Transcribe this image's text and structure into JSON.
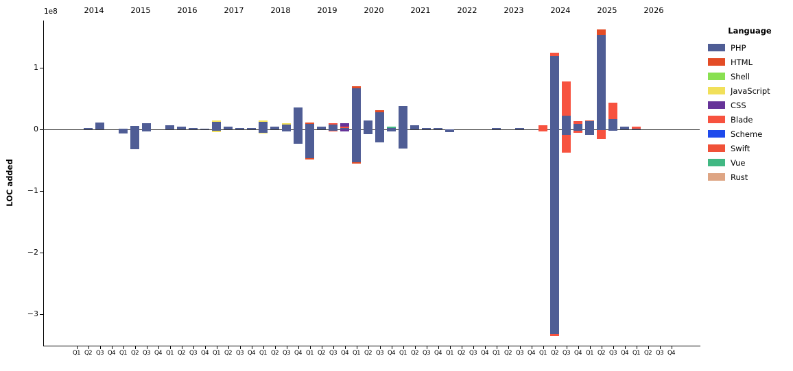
{
  "chart_data": {
    "type": "bar",
    "stacked": true,
    "title": "",
    "ylabel": "LOC added",
    "y_offset_label": "1e8",
    "value_unit": "1e8 lines of code",
    "ylim": [
      -3.51,
      1.77
    ],
    "grid": false,
    "zero_line": true,
    "y_ticks": [
      {
        "value": 1,
        "label": "1"
      },
      {
        "value": 0,
        "label": "0"
      },
      {
        "value": -1,
        "label": "−1"
      },
      {
        "value": -2,
        "label": "−2"
      },
      {
        "value": -3,
        "label": "−3"
      }
    ],
    "years": [
      "2014",
      "2015",
      "2016",
      "2017",
      "2018",
      "2019",
      "2020",
      "2021",
      "2022",
      "2023",
      "2024",
      "2025",
      "2026"
    ],
    "quarter_labels": [
      "Q1",
      "Q2",
      "Q3",
      "Q4"
    ],
    "legend": {
      "title": "Language",
      "position": "right-outside",
      "entries": [
        {
          "label": "PHP",
          "color": "#4f5d95"
        },
        {
          "label": "HTML",
          "color": "#e34c26"
        },
        {
          "label": "Shell",
          "color": "#89e051"
        },
        {
          "label": "JavaScript",
          "color": "#f1e05a"
        },
        {
          "label": "CSS",
          "color": "#663399"
        },
        {
          "label": "Blade",
          "color": "#f7523f"
        },
        {
          "label": "Scheme",
          "color": "#1e4aec"
        },
        {
          "label": "Swift",
          "color": "#f05138"
        },
        {
          "label": "Vue",
          "color": "#41b883"
        },
        {
          "label": "Rust",
          "color": "#dea584"
        }
      ]
    },
    "bars": [
      {
        "year": "2014",
        "quarter": "Q2",
        "pos": [
          [
            "PHP",
            0.02
          ]
        ],
        "neg": []
      },
      {
        "year": "2014",
        "quarter": "Q3",
        "pos": [
          [
            "PHP",
            0.11
          ]
        ],
        "neg": []
      },
      {
        "year": "2015",
        "quarter": "Q1",
        "pos": [
          [
            "PHP",
            0.01
          ]
        ],
        "neg": [
          [
            "PHP",
            0.07
          ]
        ]
      },
      {
        "year": "2015",
        "quarter": "Q2",
        "pos": [
          [
            "PHP",
            0.06
          ]
        ],
        "neg": [
          [
            "PHP",
            0.32
          ]
        ]
      },
      {
        "year": "2015",
        "quarter": "Q3",
        "pos": [
          [
            "PHP",
            0.1
          ]
        ],
        "neg": [
          [
            "PHP",
            0.03
          ]
        ]
      },
      {
        "year": "2016",
        "quarter": "Q1",
        "pos": [
          [
            "PHP",
            0.07
          ]
        ],
        "neg": []
      },
      {
        "year": "2016",
        "quarter": "Q2",
        "pos": [
          [
            "PHP",
            0.04
          ]
        ],
        "neg": []
      },
      {
        "year": "2016",
        "quarter": "Q3",
        "pos": [
          [
            "PHP",
            0.02
          ]
        ],
        "neg": []
      },
      {
        "year": "2016",
        "quarter": "Q4",
        "pos": [
          [
            "PHP",
            0.01
          ]
        ],
        "neg": []
      },
      {
        "year": "2017",
        "quarter": "Q1",
        "pos": [
          [
            "PHP",
            0.12
          ],
          [
            "JavaScript",
            0.02
          ]
        ],
        "neg": [
          [
            "PHP",
            0.02
          ],
          [
            "JavaScript",
            0.02
          ]
        ]
      },
      {
        "year": "2017",
        "quarter": "Q2",
        "pos": [
          [
            "PHP",
            0.05
          ]
        ],
        "neg": []
      },
      {
        "year": "2017",
        "quarter": "Q3",
        "pos": [
          [
            "PHP",
            0.02
          ]
        ],
        "neg": []
      },
      {
        "year": "2017",
        "quarter": "Q4",
        "pos": [
          [
            "PHP",
            0.02
          ]
        ],
        "neg": []
      },
      {
        "year": "2018",
        "quarter": "Q1",
        "pos": [
          [
            "PHP",
            0.12
          ],
          [
            "JavaScript",
            0.02
          ]
        ],
        "neg": [
          [
            "PHP",
            0.05
          ],
          [
            "JavaScript",
            0.02
          ]
        ]
      },
      {
        "year": "2018",
        "quarter": "Q2",
        "pos": [
          [
            "PHP",
            0.05
          ]
        ],
        "neg": []
      },
      {
        "year": "2018",
        "quarter": "Q3",
        "pos": [
          [
            "PHP",
            0.08
          ],
          [
            "JavaScript",
            0.015
          ]
        ],
        "neg": [
          [
            "PHP",
            0.03
          ]
        ]
      },
      {
        "year": "2018",
        "quarter": "Q4",
        "pos": [
          [
            "PHP",
            0.36
          ]
        ],
        "neg": [
          [
            "PHP",
            0.23
          ]
        ]
      },
      {
        "year": "2019",
        "quarter": "Q1",
        "pos": [
          [
            "PHP",
            0.09
          ],
          [
            "HTML",
            0.02
          ]
        ],
        "neg": [
          [
            "PHP",
            0.47
          ],
          [
            "HTML",
            0.02
          ]
        ]
      },
      {
        "year": "2019",
        "quarter": "Q2",
        "pos": [
          [
            "PHP",
            0.05
          ]
        ],
        "neg": []
      },
      {
        "year": "2019",
        "quarter": "Q3",
        "pos": [
          [
            "PHP",
            0.08
          ],
          [
            "Blade",
            0.015
          ]
        ],
        "neg": [
          [
            "PHP",
            0.02
          ],
          [
            "Blade",
            0.01
          ]
        ]
      },
      {
        "year": "2019",
        "quarter": "Q4",
        "pos": [
          [
            "PHP",
            0.02
          ],
          [
            "Blade",
            0.03
          ],
          [
            "CSS",
            0.05
          ]
        ],
        "neg": [
          [
            "CSS",
            0.03
          ]
        ]
      },
      {
        "year": "2020",
        "quarter": "Q1",
        "pos": [
          [
            "PHP",
            0.67
          ],
          [
            "HTML",
            0.03
          ]
        ],
        "neg": [
          [
            "PHP",
            0.53
          ],
          [
            "HTML",
            0.03
          ]
        ]
      },
      {
        "year": "2020",
        "quarter": "Q2",
        "pos": [
          [
            "PHP",
            0.14
          ]
        ],
        "neg": [
          [
            "PHP",
            0.08
          ]
        ]
      },
      {
        "year": "2020",
        "quarter": "Q3",
        "pos": [
          [
            "PHP",
            0.28
          ],
          [
            "HTML",
            0.03
          ]
        ],
        "neg": [
          [
            "PHP",
            0.21
          ]
        ]
      },
      {
        "year": "2020",
        "quarter": "Q4",
        "pos": [
          [
            "PHP",
            0.025
          ],
          [
            "Vue",
            0.025
          ]
        ],
        "neg": [
          [
            "PHP",
            0.03
          ]
        ]
      },
      {
        "year": "2021",
        "quarter": "Q1",
        "pos": [
          [
            "PHP",
            0.38
          ]
        ],
        "neg": [
          [
            "PHP",
            0.31
          ]
        ]
      },
      {
        "year": "2021",
        "quarter": "Q2",
        "pos": [
          [
            "PHP",
            0.065
          ]
        ],
        "neg": []
      },
      {
        "year": "2021",
        "quarter": "Q3",
        "pos": [
          [
            "PHP",
            0.02
          ]
        ],
        "neg": []
      },
      {
        "year": "2021",
        "quarter": "Q4",
        "pos": [
          [
            "PHP",
            0.02
          ]
        ],
        "neg": []
      },
      {
        "year": "2022",
        "quarter": "Q1",
        "pos": [],
        "neg": [
          [
            "PHP",
            0.045
          ]
        ]
      },
      {
        "year": "2023",
        "quarter": "Q1",
        "pos": [
          [
            "PHP",
            0.025
          ]
        ],
        "neg": []
      },
      {
        "year": "2023",
        "quarter": "Q3",
        "pos": [
          [
            "PHP",
            0.025
          ]
        ],
        "neg": []
      },
      {
        "year": "2024",
        "quarter": "Q1",
        "pos": [
          [
            "Blade",
            0.07
          ]
        ],
        "neg": [
          [
            "Blade",
            0.035
          ]
        ]
      },
      {
        "year": "2024",
        "quarter": "Q2",
        "pos": [
          [
            "PHP",
            1.19
          ],
          [
            "Blade",
            0.05
          ]
        ],
        "neg": [
          [
            "PHP",
            3.32
          ],
          [
            "Blade",
            0.04
          ]
        ]
      },
      {
        "year": "2024",
        "quarter": "Q3",
        "pos": [
          [
            "PHP",
            0.22
          ],
          [
            "Blade",
            0.56
          ]
        ],
        "neg": [
          [
            "PHP",
            0.09
          ],
          [
            "Blade",
            0.29
          ]
        ]
      },
      {
        "year": "2024",
        "quarter": "Q4",
        "pos": [
          [
            "PHP",
            0.09
          ],
          [
            "Blade",
            0.04
          ]
        ],
        "neg": [
          [
            "PHP",
            0.02
          ],
          [
            "Blade",
            0.04
          ]
        ]
      },
      {
        "year": "2025",
        "quarter": "Q1",
        "pos": [
          [
            "PHP",
            0.13
          ],
          [
            "HTML",
            0.02
          ]
        ],
        "neg": [
          [
            "PHP",
            0.09
          ]
        ]
      },
      {
        "year": "2025",
        "quarter": "Q2",
        "pos": [
          [
            "PHP",
            1.53
          ],
          [
            "HTML",
            0.09
          ]
        ],
        "neg": [
          [
            "PHP",
            0.01
          ],
          [
            "Blade",
            0.15
          ]
        ]
      },
      {
        "year": "2025",
        "quarter": "Q3",
        "pos": [
          [
            "PHP",
            0.17
          ],
          [
            "Blade",
            0.26
          ]
        ],
        "neg": [
          [
            "PHP",
            0.02
          ]
        ]
      },
      {
        "year": "2025",
        "quarter": "Q4",
        "pos": [
          [
            "PHP",
            0.04
          ]
        ],
        "neg": []
      },
      {
        "year": "2026",
        "quarter": "Q1",
        "pos": [
          [
            "PHP",
            0.01
          ],
          [
            "Blade",
            0.03
          ]
        ],
        "neg": []
      }
    ]
  }
}
